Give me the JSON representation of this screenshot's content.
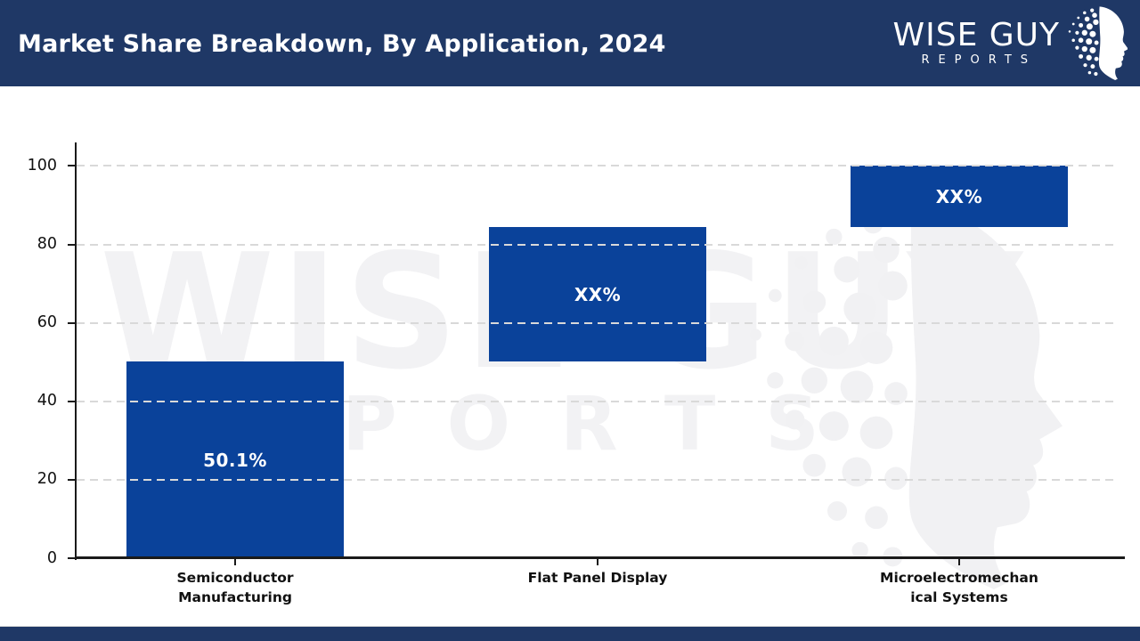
{
  "header": {
    "title": "Market Share Breakdown, By Application, 2024",
    "logo": {
      "line1": "WISE GUY",
      "line2": "REPORTS"
    }
  },
  "watermark": {
    "line1": "WISE GUY",
    "line2": "REPORTS"
  },
  "chart_data": {
    "type": "bar",
    "subtype": "floating-segment-breakdown",
    "title": "Market Share Breakdown, By Application, 2024",
    "categories": [
      "Semiconductor\nManufacturing",
      "Flat Panel Display",
      "Microelectromechan\nical Systems"
    ],
    "segments": [
      {
        "category": "Semiconductor Manufacturing",
        "start": 0,
        "end": 50.1,
        "label": "50.1%"
      },
      {
        "category": "Flat Panel Display",
        "start": 50.1,
        "end": 84.5,
        "label": "XX%"
      },
      {
        "category": "Microelectromechanical Systems",
        "start": 84.5,
        "end": 100,
        "label": "XX%"
      }
    ],
    "yticks": [
      0,
      20,
      40,
      60,
      80,
      100
    ],
    "ylim": [
      0,
      106
    ],
    "grid": "dashed-horizontal",
    "legend": "none",
    "colors": {
      "bar": "#0a429a",
      "header_navy": "#1f3866",
      "gridline": "#d9d9d9",
      "axis": "#1a1a1a",
      "bar_label": "#ffffff",
      "watermark": "#f2f2f4"
    }
  }
}
